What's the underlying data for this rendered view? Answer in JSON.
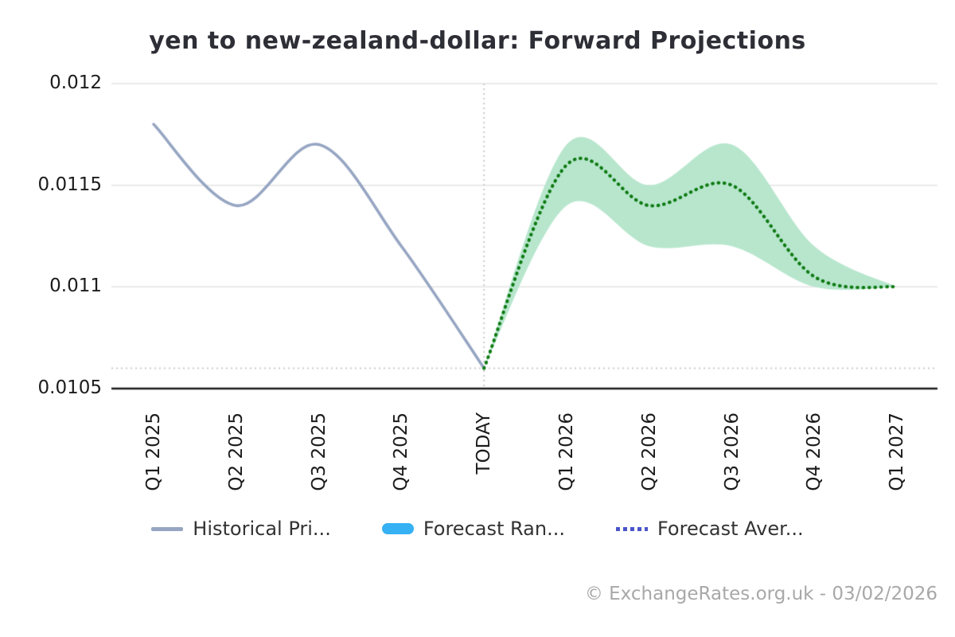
{
  "page": {
    "title": "yen to new-zealand-dollar: Forward Projections",
    "footer_credit": "© ExchangeRates.org.uk - 03/02/2026"
  },
  "legend": {
    "items": [
      {
        "label": "Historical Pri...",
        "swatch": "line",
        "color": "#96a5c2"
      },
      {
        "label": "Forecast Ran...",
        "swatch": "band",
        "color": "#36b1f3"
      },
      {
        "label": "Forecast Aver...",
        "swatch": "dotted",
        "color": "#4a55c9"
      }
    ]
  },
  "chart_data": {
    "type": "line",
    "title": "yen to new-zealand-dollar: Forward Projections",
    "x_categories": [
      "Q1 2025",
      "Q2 2025",
      "Q3 2025",
      "Q4 2025",
      "TODAY",
      "Q1 2026",
      "Q2 2026",
      "Q3 2026",
      "Q4 2026",
      "Q1 2027"
    ],
    "y_ticks": [
      {
        "label": "0.012",
        "value": 0.012
      },
      {
        "label": "0.0115",
        "value": 0.0115
      },
      {
        "label": "0.011",
        "value": 0.011
      },
      {
        "label": "0.0105",
        "value": 0.0105
      }
    ],
    "ylim": [
      0.0105,
      0.012
    ],
    "today_index": 4,
    "baseline": {
      "value": 0.0106,
      "style": "dotted"
    },
    "series": [
      {
        "name": "Historical Price",
        "type": "line",
        "style": "solid",
        "color": "#96a5c2",
        "x": [
          0,
          1,
          2,
          3,
          4
        ],
        "values": [
          0.0118,
          0.0114,
          0.0117,
          0.0112,
          0.0106
        ]
      },
      {
        "name": "Forecast Range",
        "type": "band",
        "color": "#b7e6cd",
        "x": [
          4,
          5,
          6,
          7,
          8,
          9
        ],
        "upper": [
          0.0106,
          0.0117,
          0.0115,
          0.0117,
          0.0112,
          0.011
        ],
        "lower": [
          0.0106,
          0.0114,
          0.0112,
          0.0112,
          0.011,
          0.011
        ]
      },
      {
        "name": "Forecast Average",
        "type": "line",
        "style": "dotted",
        "color": "#0e7a12",
        "x": [
          4,
          5,
          6,
          7,
          8,
          9
        ],
        "values": [
          0.0106,
          0.0116,
          0.0114,
          0.0115,
          0.01105,
          0.011
        ]
      }
    ],
    "grid_color": "#e3e3e3",
    "axis_color": "#1a1a1a",
    "guide_color": "#cbcbcb"
  }
}
